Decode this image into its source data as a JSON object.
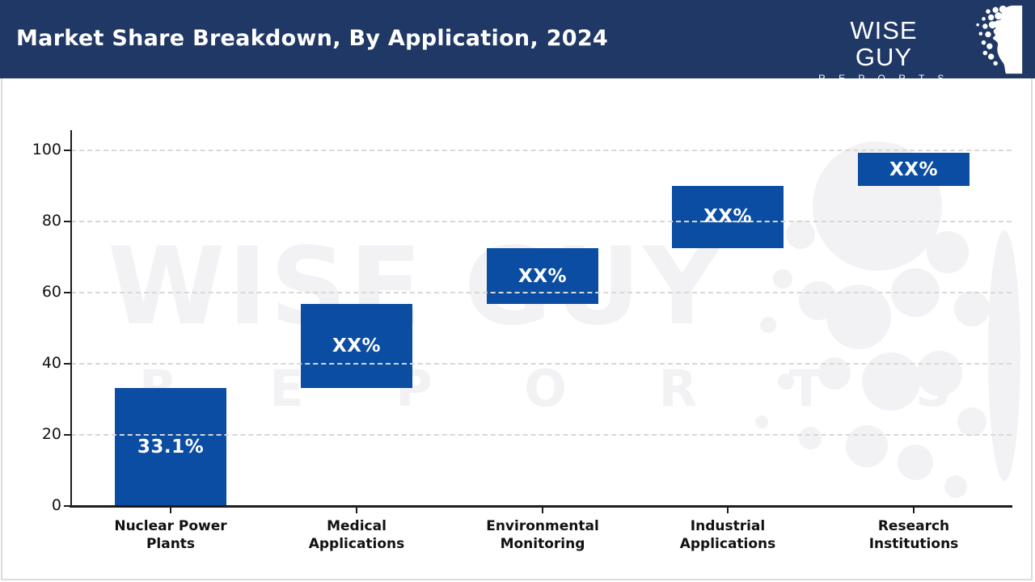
{
  "header": {
    "title": "Market Share Breakdown, By Application, 2024",
    "logo": {
      "brand_line1": "WISE GUY",
      "brand_line2": "R E P O R T S"
    }
  },
  "watermark": {
    "line1": "WISE GUY",
    "line2": "R E P O R T S"
  },
  "colors": {
    "header_bg": "#1f3865",
    "bar": "#0b4da2",
    "grid": "#d8d8d8",
    "axis": "#1c1c1c",
    "watermark": "#f2f2f4",
    "value_label": "#ffffff"
  },
  "chart_data": {
    "type": "bar",
    "subtype": "waterfall",
    "title": "Market Share Breakdown, By Application, 2024",
    "categories": [
      "Nuclear Power Plants",
      "Medical Applications",
      "Environmental Monitoring",
      "Industrial Applications",
      "Research Institutions"
    ],
    "category_tick_labels": [
      "Nuclear Power\nPlants",
      "Medical\nApplications",
      "Environmental\nMonitoring",
      "Industrial\nApplications",
      "Research\nInstitutions"
    ],
    "segments": [
      {
        "category": "Nuclear Power Plants",
        "start": 0,
        "end": 33.1,
        "label": "33.1%"
      },
      {
        "category": "Medical Applications",
        "start": 33.1,
        "end": 56.8,
        "label": "XX%"
      },
      {
        "category": "Environmental Monitoring",
        "start": 56.8,
        "end": 72.5,
        "label": "XX%"
      },
      {
        "category": "Industrial Applications",
        "start": 72.6,
        "end": 90.0,
        "label": "XX%"
      },
      {
        "category": "Research Institutions",
        "start": 90.0,
        "end": 99.3,
        "label": "XX%"
      }
    ],
    "y_ticks": [
      0,
      20,
      40,
      60,
      80,
      100
    ],
    "ylim": [
      0,
      105
    ],
    "xlabel": "",
    "ylabel": "",
    "grid": "horizontal-dashed",
    "legend": "none",
    "bar_color": "#0b4da2",
    "value_label_color": "#ffffff"
  }
}
